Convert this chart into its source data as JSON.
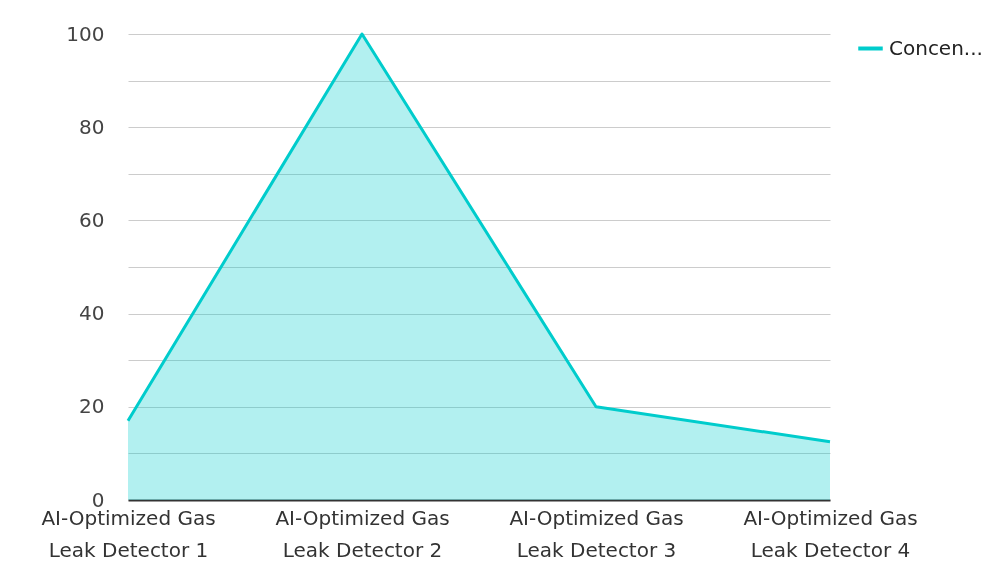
{
  "chart_data": {
    "type": "area",
    "categories": [
      "AI-Optimized Gas Leak Detector 1",
      "AI-Optimized Gas Leak Detector 2",
      "AI-Optimized Gas Leak Detector 3",
      "AI-Optimized Gas Leak Detector 4"
    ],
    "series": [
      {
        "name": "Concen...",
        "color": "#00cccc",
        "values": [
          17,
          100,
          20,
          12.5
        ]
      }
    ],
    "ylim": [
      0,
      100
    ],
    "yticks": [
      0,
      {
        "value": 10,
        "label": null
      },
      20,
      {
        "value": 30,
        "label": null
      },
      40,
      {
        "value": 50,
        "label": null
      },
      60,
      {
        "value": 70,
        "label": null
      },
      80,
      {
        "value": 90,
        "label": null
      },
      100
    ],
    "grid": "y",
    "legend": "top right"
  }
}
